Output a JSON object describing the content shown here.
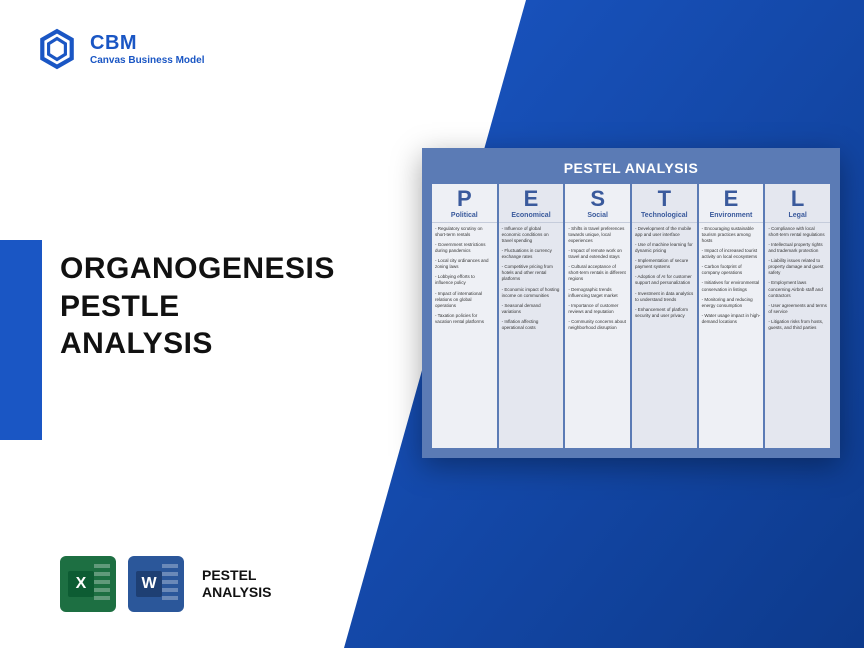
{
  "logo": {
    "title": "CBM",
    "subtitle": "Canvas Business Model",
    "icon_color": "#1a56c4"
  },
  "main_title": "ORGANOGENESIS\nPESTLE\nANALYSIS",
  "bottom": {
    "label": "PESTEL\nANALYSIS",
    "excel_color": "#1d6f42",
    "word_color": "#2b579a"
  },
  "colors": {
    "accent_blue": "#1a56c4",
    "diagonal_top": "#1a56c4",
    "diagonal_bottom": "#0d3a8c",
    "card_bg": "#5b7bb5",
    "col_bg_a": "#eef0f5",
    "col_bg_b": "#e4e7ef",
    "header_text": "#3a5a9c"
  },
  "pestel": {
    "title": "PESTEL ANALYSIS",
    "columns": [
      {
        "letter": "P",
        "name": "Political",
        "items": [
          "Regulatory scrutiny on short-term rentals",
          "Government restrictions during pandemics",
          "Local city ordinances and zoning laws",
          "Lobbying efforts to influence policy",
          "Impact of international relations on global operations",
          "Taxation policies for vacation rental platforms"
        ]
      },
      {
        "letter": "E",
        "name": "Economical",
        "items": [
          "Influence of global economic conditions on travel spending",
          "Fluctuations in currency exchange rates",
          "Competitive pricing from hotels and other rental platforms",
          "Economic impact of hosting income on communities",
          "Seasonal demand variations",
          "Inflation affecting operational costs"
        ]
      },
      {
        "letter": "S",
        "name": "Social",
        "items": [
          "Shifts in travel preferences towards unique, local experiences",
          "Impact of remote work on travel and extended stays",
          "Cultural acceptance of short-term rentals in different regions",
          "Demographic trends influencing target market",
          "Importance of customer reviews and reputation",
          "Community concerns about neighborhood disruption"
        ]
      },
      {
        "letter": "T",
        "name": "Technological",
        "items": [
          "Development of the mobile app and user interface",
          "Use of machine learning for dynamic pricing",
          "Implementation of secure payment systems",
          "Adoption of AI for customer support and personalization",
          "Investment in data analytics to understand trends",
          "Enhancement of platform security and user privacy"
        ]
      },
      {
        "letter": "E",
        "name": "Environment",
        "items": [
          "Encouraging sustainable tourism practices among hosts",
          "Impact of increased tourist activity on local ecosystems",
          "Carbon footprint of company operations",
          "Initiatives for environmental conservation in listings",
          "Monitoring and reducing energy consumption",
          "Water usage impact in high-demand locations"
        ]
      },
      {
        "letter": "L",
        "name": "Legal",
        "items": [
          "Compliance with local short-term rental regulations",
          "Intellectual property rights and trademark protection",
          "Liability issues related to property damage and guest safety",
          "Employment laws concerning Airbnb staff and contractors",
          "User agreements and terms of service",
          "Litigation risks from hosts, guests, and third parties"
        ]
      }
    ]
  }
}
